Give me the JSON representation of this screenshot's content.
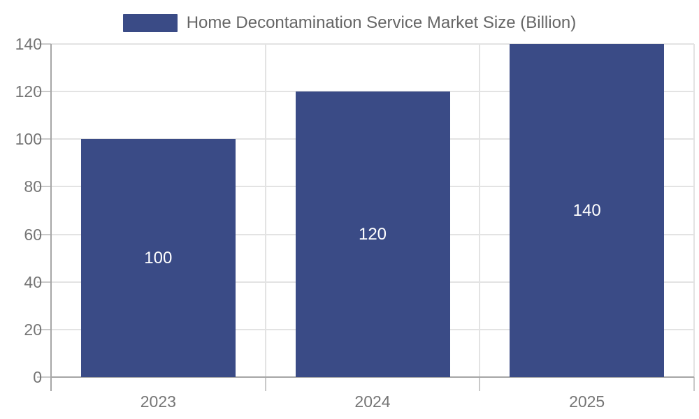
{
  "legend": {
    "label": "Home Decontamination Service Market Size (Billion)"
  },
  "chart_data": {
    "type": "bar",
    "title": "",
    "xlabel": "",
    "ylabel": "",
    "categories": [
      "2023",
      "2024",
      "2025"
    ],
    "values": [
      100,
      120,
      140
    ],
    "bar_labels": [
      "100",
      "120",
      "140"
    ],
    "series_name": "Home Decontamination Service Market Size (Billion)",
    "ylim": [
      0,
      140
    ],
    "yticks": [
      0,
      20,
      40,
      60,
      80,
      100,
      120,
      140
    ],
    "grid": true,
    "legend_position": "top-center",
    "colors": {
      "bar": "#3a4b86",
      "bar_label": "#ffffff",
      "axis": "#a6a6a6",
      "gridline": "#e3e3e3",
      "tick": "#c9c9c9",
      "tick_label": "#757575",
      "legend_text": "#666666",
      "background": "#ffffff"
    }
  }
}
